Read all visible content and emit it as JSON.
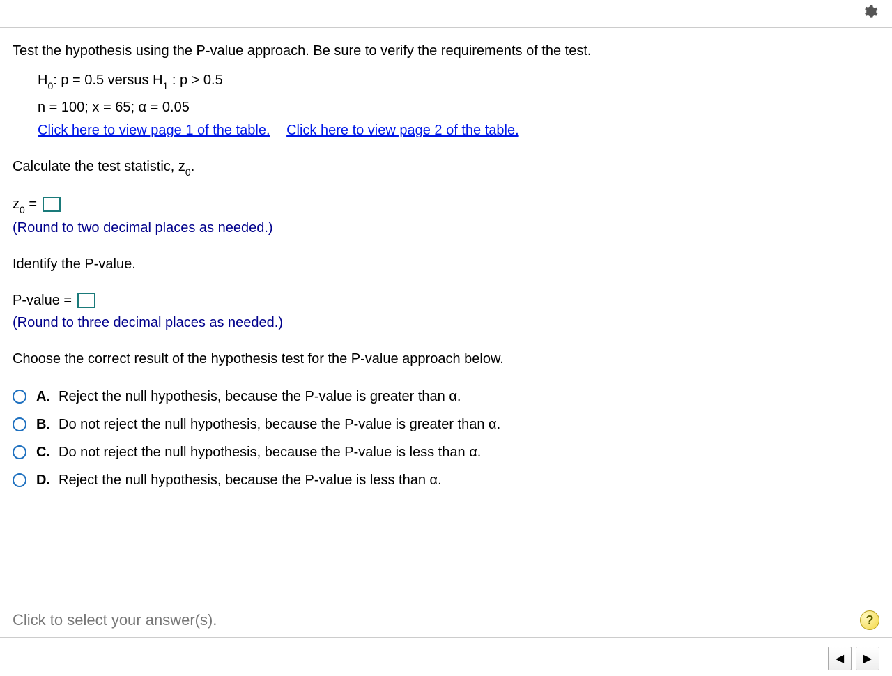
{
  "colors": {
    "link": "#0018e8",
    "hint": "#00008b",
    "input_border": "#1a7a7a",
    "radio_border": "#1e70bf",
    "divider": "#cccccc",
    "footer_text": "#777777",
    "help_bg": "#f4d742"
  },
  "problem": {
    "intro": "Test the hypothesis using the P-value approach. Be sure to verify the requirements of the test.",
    "hypothesis_html": "H<span class='sub'>0</span>: p = 0.5 versus H<span class='sub'>1</span> : p > 0.5",
    "params": "n = 100; x = 65; α = 0.05",
    "link1": "Click here to view page 1 of the table.",
    "link2": "Click here to view page 2 of the table."
  },
  "q1": {
    "prompt_html": "Calculate the test statistic, z<span class='sub'>0</span>.",
    "label_html": "z<span class='sub'>0</span> = ",
    "hint": "(Round to two decimal places as needed.)"
  },
  "q2": {
    "prompt": "Identify the P-value.",
    "label": "P-value = ",
    "hint": "(Round to three decimal places as needed.)"
  },
  "q3": {
    "prompt": "Choose the correct result of the hypothesis test for the P-value approach below.",
    "options": [
      {
        "letter": "A.",
        "text": "Reject the null hypothesis, because the P-value is greater than α."
      },
      {
        "letter": "B.",
        "text": "Do not reject the null hypothesis, because the P-value is greater than α."
      },
      {
        "letter": "C.",
        "text": "Do not reject the null hypothesis, because the P-value is less than α."
      },
      {
        "letter": "D.",
        "text": "Reject the null hypothesis, because the P-value is less than α."
      }
    ]
  },
  "footer": {
    "prompt": "Click to select your answer(s).",
    "help": "?"
  },
  "nav": {
    "prev": "◀",
    "next": "▶"
  }
}
